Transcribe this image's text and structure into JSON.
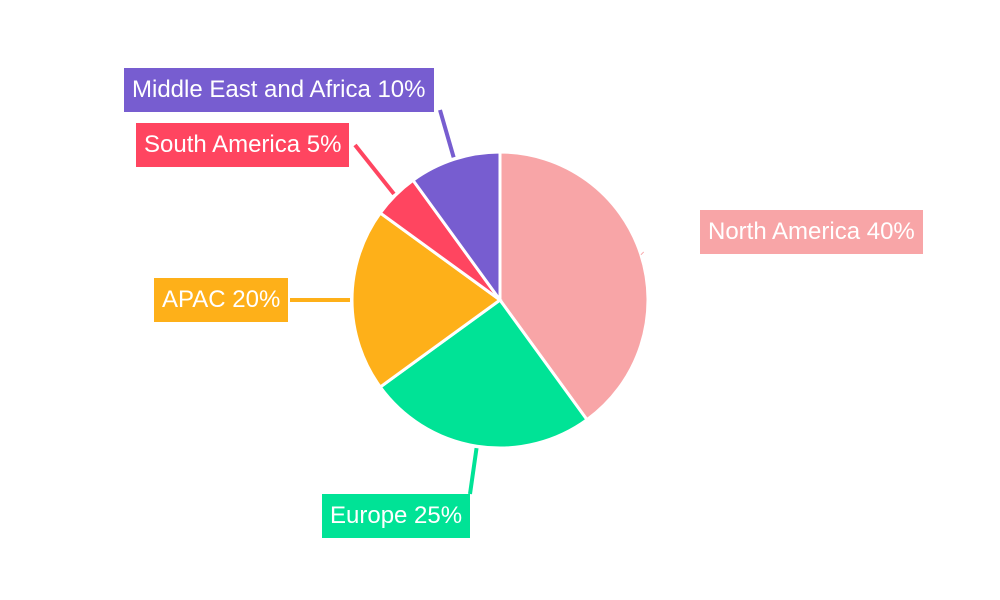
{
  "chart_data": {
    "type": "pie",
    "title": "",
    "categories": [
      "North America",
      "Europe",
      "APAC",
      "South America",
      "Middle East and Africa"
    ],
    "values": [
      40,
      25,
      20,
      5,
      10
    ],
    "colors": [
      "#f8a5a7",
      "#00e396",
      "#feb019",
      "#ff4560",
      "#775dd0"
    ],
    "labels": [
      "North America 40%",
      "Europe 25%",
      "APAC 20%",
      "South America 5%",
      "Middle East and Africa 10%"
    ],
    "start_angle_deg": 0,
    "direction": "clockwise",
    "legend": "none",
    "label_style": "outside callout boxes with leader lines"
  }
}
